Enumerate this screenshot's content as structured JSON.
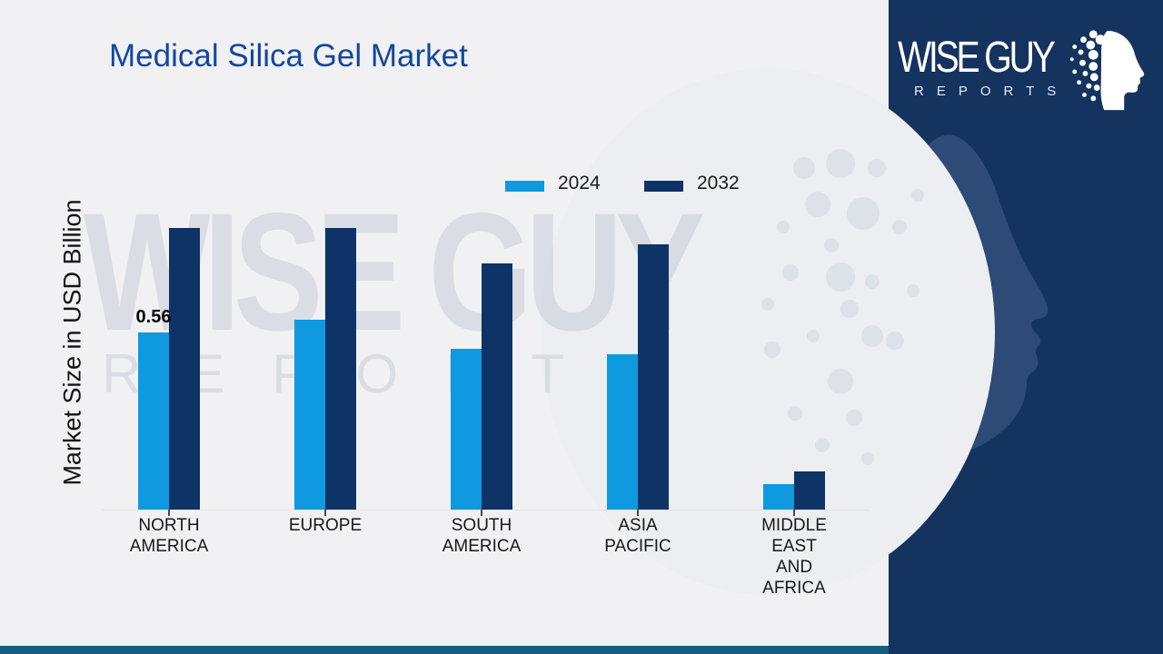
{
  "page": {
    "title": "Medical Silica Gel Market"
  },
  "logo": {
    "name_text": "WISE GUY",
    "reports_text": "REPORTS",
    "face_icon": "head-profile-dots-icon"
  },
  "watermark": {
    "name_text": "WISE GUY",
    "reports_text": "REPORTS",
    "face_icon": "head-profile-dots-watermark-icon"
  },
  "colors": {
    "background": "#f1f1f3",
    "title_blue": "#12489e",
    "series_2024": "#0f99df",
    "series_2032": "#0e3366",
    "brand_band_navy": "#14335f",
    "footer_teal": "#175e7e",
    "text_dark": "#191919"
  },
  "chart_data": {
    "type": "bar",
    "title": "Medical Silica Gel Market",
    "xlabel": "",
    "ylabel": "Market Size in USD Billion",
    "unit": "USD Billion",
    "grid": false,
    "legend_position": "top",
    "ylim": [
      0,
      1.0
    ],
    "categories": [
      "NORTH AMERICA",
      "EUROPE",
      "SOUTH AMERICA",
      "ASIA PACIFIC",
      "MIDDLE EAST AND AFRICA"
    ],
    "category_label_lines": [
      [
        "NORTH",
        "AMERICA"
      ],
      [
        "EUROPE"
      ],
      [
        "SOUTH",
        "AMERICA"
      ],
      [
        "ASIA",
        "PACIFIC"
      ],
      [
        "MIDDLE",
        "EAST",
        "AND",
        "AFRICA"
      ]
    ],
    "series": [
      {
        "name": "2024",
        "color": "#0f99df",
        "values": [
          0.56,
          0.6,
          0.51,
          0.49,
          0.08
        ]
      },
      {
        "name": "2032",
        "color": "#0e3366",
        "values": [
          0.89,
          0.89,
          0.78,
          0.84,
          0.12
        ]
      }
    ],
    "value_labels": [
      {
        "series": "2024",
        "category": "NORTH AMERICA",
        "text": "0.56"
      }
    ]
  }
}
